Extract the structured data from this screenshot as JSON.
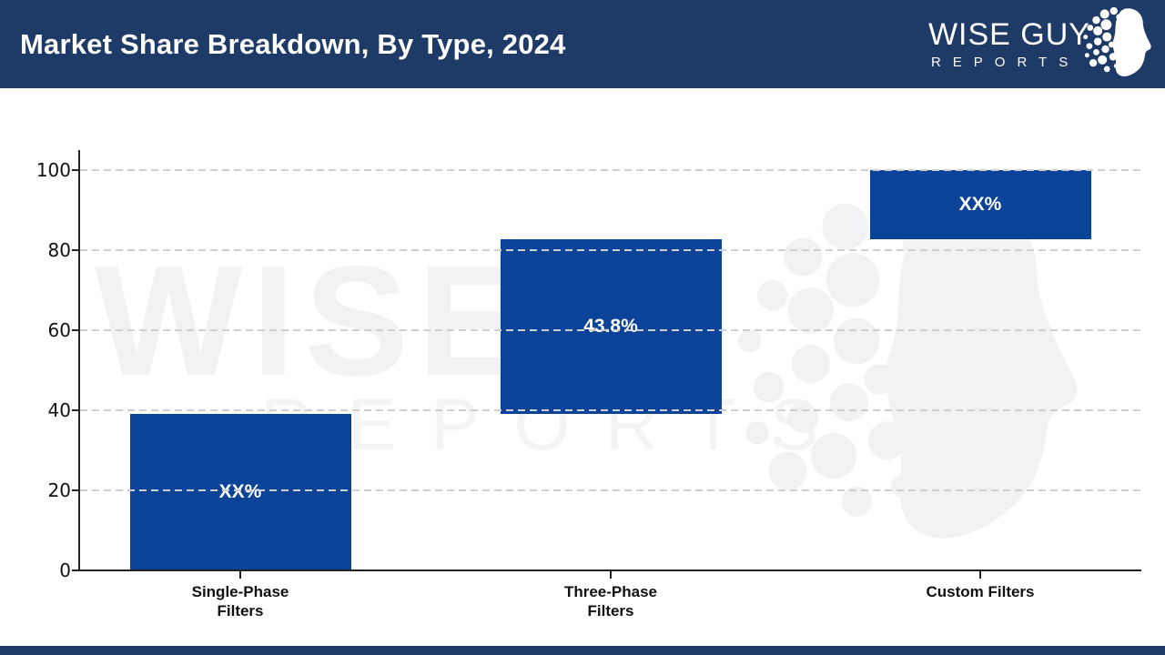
{
  "header": {
    "title": "Market Share Breakdown, By Type, 2024",
    "logo": {
      "line1": "WISE GUY",
      "line2": "REPORTS"
    }
  },
  "watermark": {
    "word1": "WISE",
    "word2": "REPORTS"
  },
  "footer": {
    "label": ""
  },
  "colors": {
    "header_bg": "#1E3A67",
    "footer_bg": "#1E3A67",
    "bar_blue": "#0A4397",
    "gridline": "#CFCFCF",
    "axis": "#222222",
    "watermark_gray": "#F2F2F4",
    "title_text": "#FFFFFF",
    "bar_label_text": "#FFFFFF"
  },
  "chart_data": {
    "type": "bar",
    "subtype": "waterfall (floating segment bars)",
    "title": "Market Share Breakdown, By Type, 2024",
    "categories": [
      "Single-Phase Filters",
      "Three-Phase Filters",
      "Custom Filters"
    ],
    "category_display": [
      "Single-Phase\nFilters",
      "Three-Phase\nFilters",
      "Custom Filters"
    ],
    "series": [
      {
        "name": "Market share (%)",
        "segment_start": [
          0,
          39,
          82.8
        ],
        "segment_end": [
          39,
          82.8,
          100
        ],
        "labels": [
          "XX%",
          "43.8%",
          "XX%"
        ]
      }
    ],
    "xlabel": "",
    "ylabel": "",
    "yticks": [
      0,
      20,
      40,
      60,
      80,
      100
    ],
    "ylim": [
      0,
      105
    ],
    "grid": "horizontal dashed, drawn over bars",
    "legend": "none",
    "bar_color": "#0A4397",
    "label_color": "#FFFFFF"
  }
}
